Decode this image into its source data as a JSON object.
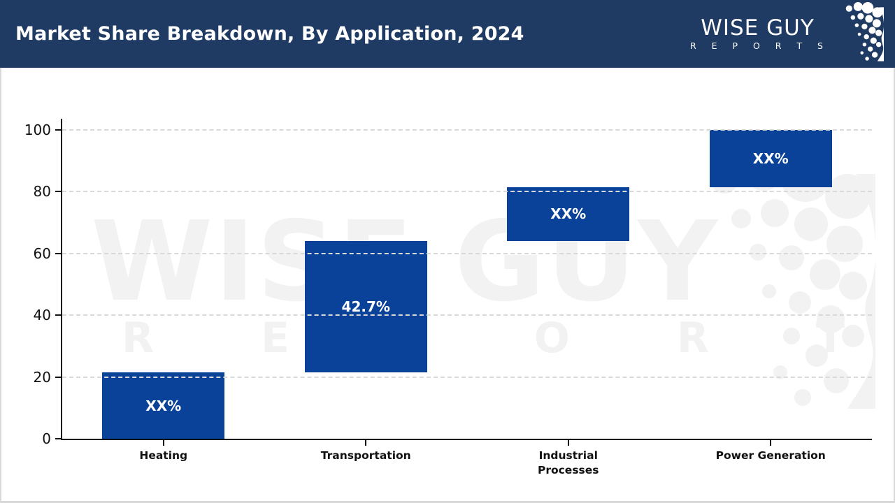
{
  "header": {
    "title": "Market Share Breakdown, By Application, 2024",
    "logo": {
      "main": "WISE GUY",
      "sub": "R E P O R T S"
    }
  },
  "watermark": {
    "main": "WISE GUY",
    "sub": "R E P O R T S"
  },
  "colors": {
    "header_bg": "#1F3A63",
    "bar": "#0A4299",
    "bar_label": "#FFFFFF",
    "grid": "#D9D9D9",
    "axis": "#111111",
    "watermark": "#F2F2F2",
    "panel_border": "#D9D9D9"
  },
  "chart_data": {
    "type": "bar",
    "subtype": "waterfall-stacked-breakdown",
    "title": "Market Share Breakdown, By Application, 2024",
    "categories": [
      "Heating",
      "Transportation",
      "Industrial Processes",
      "Power Generation"
    ],
    "category_label_lines": [
      [
        "Heating"
      ],
      [
        "Transportation"
      ],
      [
        "Industrial",
        "Processes"
      ],
      [
        "Power Generation"
      ]
    ],
    "segments": [
      {
        "category": "Heating",
        "start": 0,
        "end": 21.4,
        "value_label": "XX%"
      },
      {
        "category": "Transportation",
        "start": 21.4,
        "end": 64.1,
        "value": 42.7,
        "value_label": "42.7%"
      },
      {
        "category": "Industrial Processes",
        "start": 64.1,
        "end": 81.5,
        "value_label": "XX%"
      },
      {
        "category": "Power Generation",
        "start": 81.5,
        "end": 100,
        "value_label": "XX%"
      }
    ],
    "xlabel": "",
    "ylabel": "",
    "ylim": [
      0,
      100
    ],
    "yticks": [
      0,
      20,
      40,
      60,
      80,
      100
    ],
    "grid": "horizontal-dashed",
    "legend": "none"
  }
}
